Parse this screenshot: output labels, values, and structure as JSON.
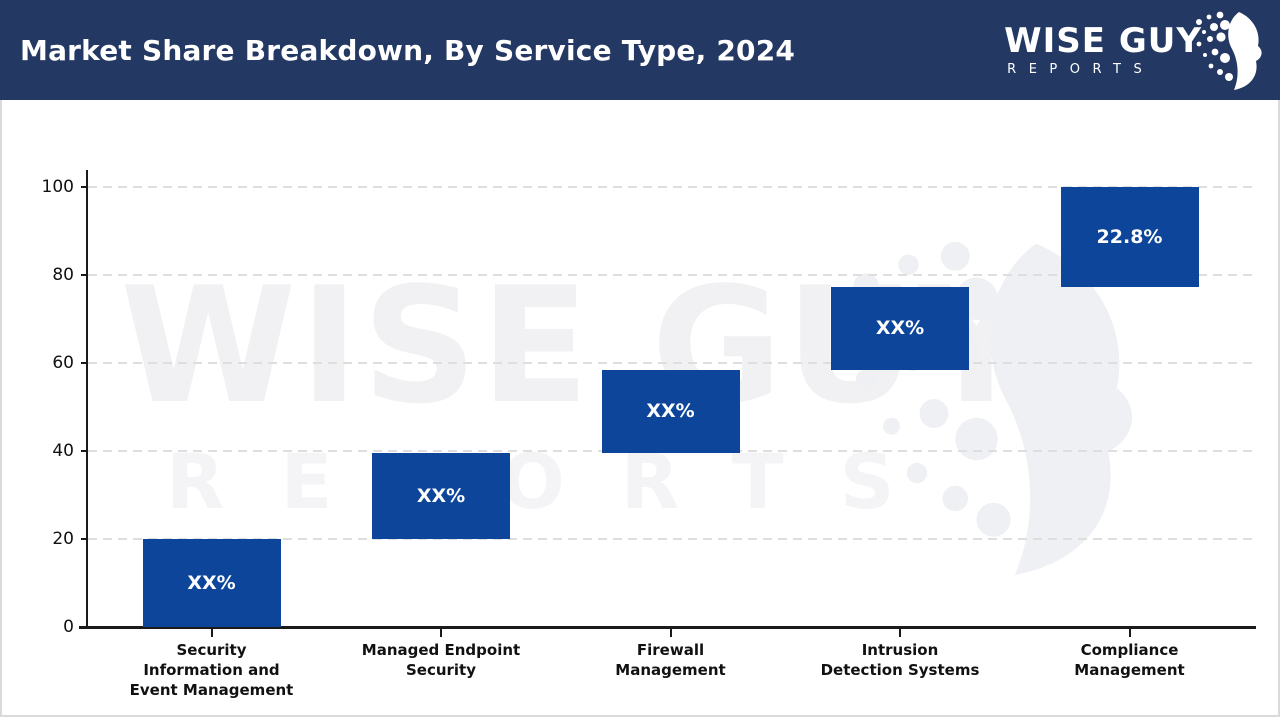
{
  "header": {
    "title": "Market Share Breakdown, By Service Type, 2024",
    "background_color": "#233862",
    "logo": {
      "name": "WISE GUY",
      "subtitle": "REPORTS"
    }
  },
  "watermark": {
    "line1": "WISE GUY",
    "line2": "REPORTS"
  },
  "chart_data": {
    "type": "bar",
    "subtype": "stepped-waterfall",
    "title": "Market Share Breakdown, By Service Type, 2024",
    "xlabel": "",
    "ylabel": "",
    "ylim": [
      0,
      105
    ],
    "yticks": [
      0,
      20,
      40,
      60,
      80,
      100
    ],
    "grid": "horizontal-dashed",
    "legend": "none",
    "bar_color": "#0c459a",
    "value_label_color": "#ffffff",
    "categories": [
      "Security Information and Event Management",
      "Managed Endpoint Security",
      "Firewall Management",
      "Intrusion Detection Systems",
      "Compliance Management"
    ],
    "bars": [
      {
        "category_lines": [
          "Security",
          "Information and",
          "Event Management"
        ],
        "start": 0,
        "end": 20,
        "value_estimate": 20,
        "label": "XX%"
      },
      {
        "category_lines": [
          "Managed Endpoint",
          "Security"
        ],
        "start": 20,
        "end": 39.5,
        "value_estimate": 19.5,
        "label": "XX%"
      },
      {
        "category_lines": [
          "Firewall",
          "Management"
        ],
        "start": 39.5,
        "end": 58.5,
        "value_estimate": 19,
        "label": "XX%"
      },
      {
        "category_lines": [
          "Intrusion",
          "Detection Systems"
        ],
        "start": 58.5,
        "end": 77.2,
        "value_estimate": 18.7,
        "label": "XX%"
      },
      {
        "category_lines": [
          "Compliance",
          "Management"
        ],
        "start": 77.2,
        "end": 100,
        "value_estimate": 22.8,
        "label": "22.8%"
      }
    ]
  }
}
